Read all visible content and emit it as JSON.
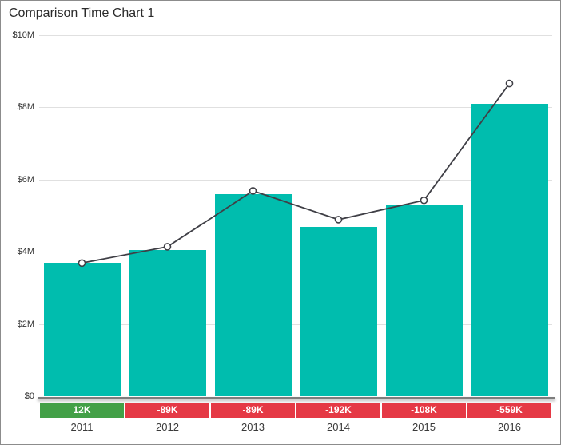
{
  "chart_data": {
    "type": "combo",
    "title": "Comparison Time Chart 1",
    "categories": [
      "2011",
      "2012",
      "2013",
      "2014",
      "2015",
      "2016"
    ],
    "series": [
      {
        "name": "bar-series",
        "type": "bar",
        "values": [
          3700000,
          4050000,
          5600000,
          4700000,
          5320000,
          8100000
        ]
      },
      {
        "name": "line-series",
        "type": "line",
        "values": [
          3688000,
          4139000,
          5689000,
          4892000,
          5428000,
          8659000
        ]
      }
    ],
    "badges": [
      {
        "label": "12K",
        "sentiment": "positive"
      },
      {
        "label": "-89K",
        "sentiment": "negative"
      },
      {
        "label": "-89K",
        "sentiment": "negative"
      },
      {
        "label": "-192K",
        "sentiment": "negative"
      },
      {
        "label": "-108K",
        "sentiment": "negative"
      },
      {
        "label": "-559K",
        "sentiment": "negative"
      }
    ],
    "y_axis": {
      "ticks": [
        "$0",
        "$2M",
        "$4M",
        "$6M",
        "$8M",
        "$10M"
      ],
      "min": 0,
      "max": 10000000
    },
    "colors": {
      "bar": "#00bdae",
      "line": "#3f3f46",
      "marker_fill": "#ffffff",
      "positive": "#43a047",
      "negative": "#e53945",
      "grid": "#e0e0e0",
      "axis_strip": "#7d7d7d"
    },
    "grid": true,
    "legend": false
  }
}
